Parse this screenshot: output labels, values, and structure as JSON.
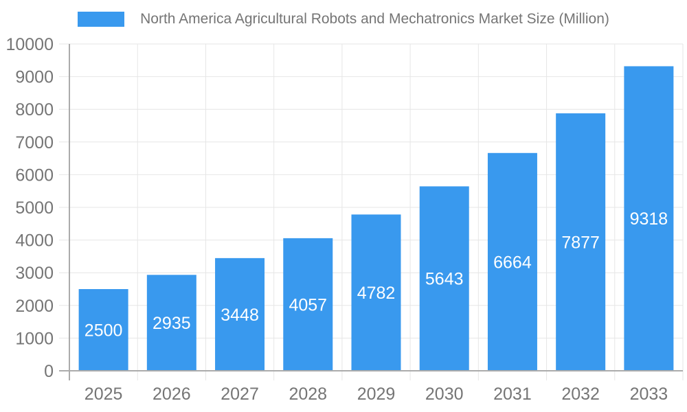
{
  "chart_data": {
    "type": "bar",
    "title": "North America Agricultural Robots and Mechatronics Market Size (Million)",
    "legend_position": "top",
    "categories": [
      "2025",
      "2026",
      "2027",
      "2028",
      "2029",
      "2030",
      "2031",
      "2032",
      "2033"
    ],
    "values": [
      2500,
      2935,
      3448,
      4057,
      4782,
      5643,
      6664,
      7877,
      9318
    ],
    "xlabel": "",
    "ylabel": "",
    "ylim": [
      0,
      10000
    ],
    "y_tick_step": 1000,
    "y_ticks": [
      0,
      1000,
      2000,
      3000,
      4000,
      5000,
      6000,
      7000,
      8000,
      9000,
      10000
    ],
    "grid": true,
    "value_labels_shown": true,
    "colors": {
      "bar": "#3999EE",
      "grid": "#e6e6e6",
      "axis": "#ababab",
      "text": "#757575",
      "value_label": "#ffffff",
      "background": "#ffffff"
    }
  }
}
